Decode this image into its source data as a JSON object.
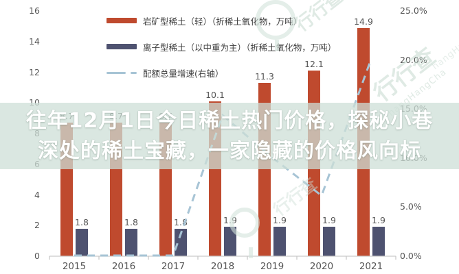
{
  "overlay": {
    "line1": "往年12月1日今日稀土热门价格，探秘小巷",
    "line2": "深处的稀土宝藏，一家隐藏的价格风向标"
  },
  "watermark": {
    "text": "行行查",
    "latin": "hangHangCha"
  },
  "chart_data": {
    "type": "bar",
    "categories": [
      "2015",
      "2016",
      "2017",
      "2018",
      "2019",
      "2020",
      "2021"
    ],
    "series": [
      {
        "name": "岩矿型稀土（轻）（折稀土氧化物，万吨）",
        "type": "bar",
        "color": "#bf4a2e",
        "values": [
          8.7,
          8.7,
          8.7,
          10.1,
          11.3,
          12.1,
          14.9
        ]
      },
      {
        "name": "离子型稀土（以中重为主）（折稀土氧化物，万吨）",
        "type": "bar",
        "color": "#4e5270",
        "values": [
          1.8,
          1.8,
          1.8,
          1.9,
          1.9,
          1.9,
          1.9
        ]
      },
      {
        "name": "配额总量增速(右轴）",
        "type": "line",
        "style": "dashed",
        "color": "#a7c4d5",
        "axis": "right",
        "values_pct": [
          0,
          0,
          0,
          14.3,
          10.0,
          6.1,
          20.0
        ]
      }
    ],
    "left_axis": {
      "ticks": [
        16,
        14,
        12,
        10,
        8,
        6,
        4,
        2,
        0
      ],
      "min": 0,
      "max": 16
    },
    "right_axis": {
      "ticks": [
        "25.0%",
        "20.0%",
        "15.0%",
        "10.0%",
        "5.0%",
        "0.0%"
      ],
      "min": 0,
      "max": 25
    },
    "legend_position": "top-center",
    "grid": false,
    "bar_label_decimals": 1
  }
}
